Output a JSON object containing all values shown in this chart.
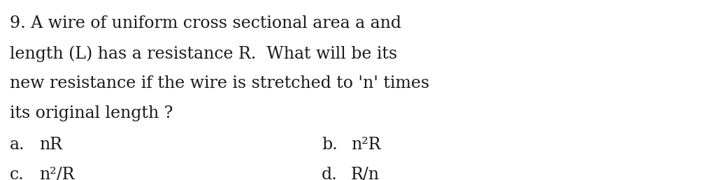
{
  "background_color": "#ffffff",
  "text_color": "#1a1a1a",
  "question_line1": "9. A wire of uniform cross sectional area a and",
  "question_line2": "length (L) has a resistance R.  What will be its",
  "question_line3": "new resistance if the wire is stretched to 'n' times",
  "question_line4": "its original length ?",
  "option_a_label": "a.",
  "option_a_text": "nR",
  "option_b_label": "b.",
  "option_b_text": "n²R",
  "option_c_label": "c.",
  "option_c_text": "n²/R",
  "option_d_label": "d.",
  "option_d_text": "R/n",
  "font_size": 17.0,
  "font_family": "DejaVu Serif",
  "fig_width": 10.24,
  "fig_height": 2.58,
  "dpi": 100
}
